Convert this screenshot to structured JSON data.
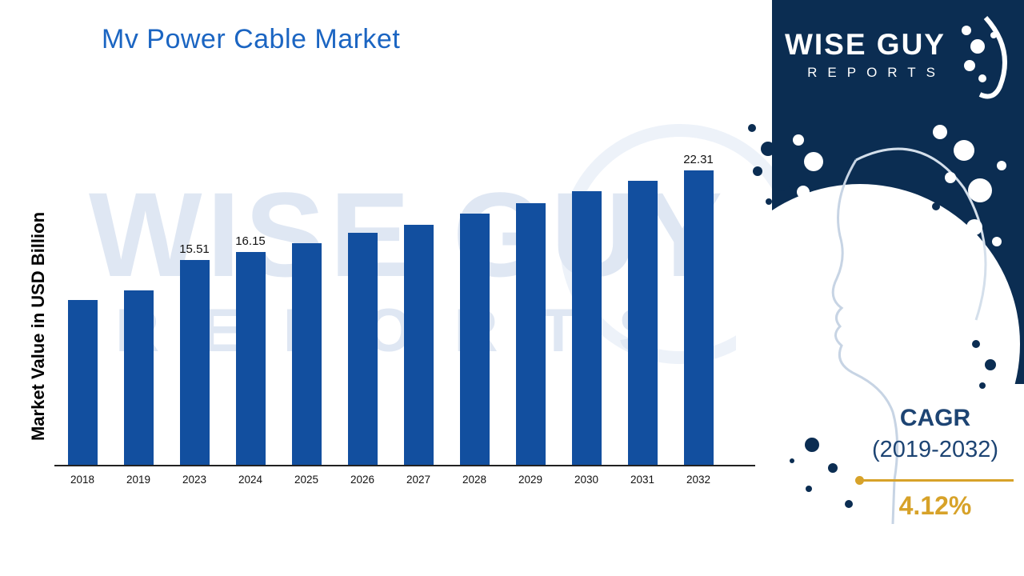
{
  "page": {
    "title": "Mv Power Cable Market"
  },
  "brand": {
    "logo_line1": "WISE GUY",
    "logo_line2": "REPORTS"
  },
  "watermark": {
    "line1": "WISE GUY",
    "line2": "REPORTS"
  },
  "cagr": {
    "label": "CAGR",
    "range": "(2019-2032)",
    "value": "4.12%"
  },
  "colors": {
    "title": "#1b65c2",
    "bar": "#124f9f",
    "panel": "#0b2d52",
    "accent_gold": "#d7a229",
    "cagr_text": "#1d4473",
    "watermark": "#dfe7f3"
  },
  "chart_data": {
    "type": "bar",
    "title": "Mv Power Cable Market",
    "ylabel": "Market Value in USD Billion",
    "categories": [
      "2018",
      "2019",
      "2023",
      "2024",
      "2025",
      "2026",
      "2027",
      "2028",
      "2029",
      "2030",
      "2031",
      "2032"
    ],
    "values": [
      12.5,
      13.2,
      15.51,
      16.15,
      16.8,
      17.6,
      18.2,
      19.0,
      19.8,
      20.7,
      21.5,
      22.31
    ],
    "data_labels": [
      "",
      "",
      "15.51",
      "16.15",
      "",
      "",
      "",
      "",
      "",
      "",
      "",
      "22.31"
    ],
    "ylim": [
      0,
      24
    ],
    "grid": false,
    "legend": false,
    "bar_color": "#124f9f",
    "units": "USD Billion"
  }
}
